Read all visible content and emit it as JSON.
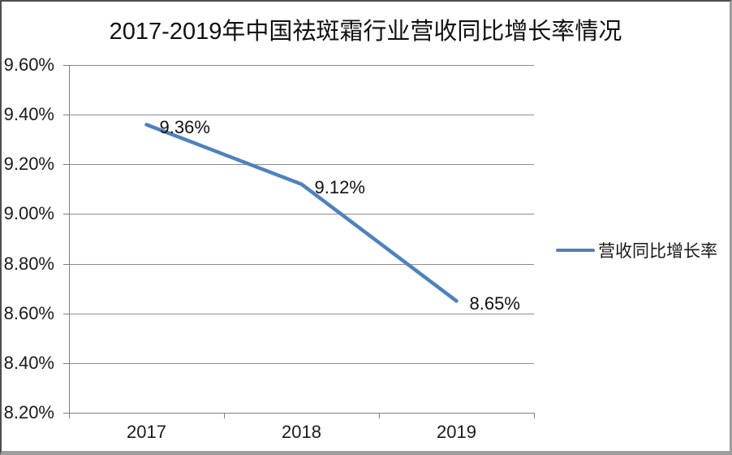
{
  "chart_data": {
    "type": "line",
    "title": "2017-2019年中国祛斑霜行业营收同比增长率情况",
    "categories": [
      "2017",
      "2018",
      "2019"
    ],
    "series": [
      {
        "name": "营收同比增长率",
        "values": [
          9.36,
          9.12,
          8.65
        ],
        "data_labels": [
          "9.36%",
          "9.12%",
          "8.65%"
        ],
        "color": "#4F81BD"
      }
    ],
    "ylim": [
      8.2,
      9.6
    ],
    "y_step": 0.2,
    "y_tick_labels": [
      "9.60%",
      "9.40%",
      "9.20%",
      "9.00%",
      "8.80%",
      "8.60%",
      "8.40%",
      "8.20%"
    ],
    "grid": true,
    "legend_position": "right",
    "colors": {
      "line": "#4F81BD",
      "gridline": "#8C8C8C",
      "axis": "#808080",
      "text": "#1A1A1A"
    }
  }
}
